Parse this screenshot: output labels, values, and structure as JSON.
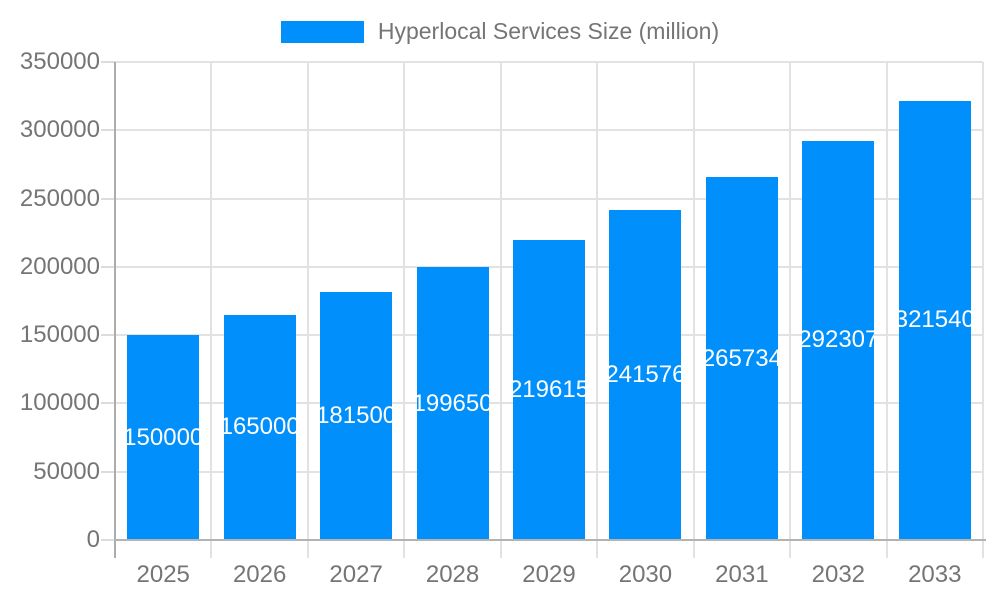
{
  "chart_data": {
    "type": "bar",
    "title": "Hyperlocal Services Size (million)",
    "legend": {
      "label": "Hyperlocal Services Size (million)",
      "position": "top",
      "marker": "rect"
    },
    "categories": [
      "2025",
      "2026",
      "2027",
      "2028",
      "2029",
      "2030",
      "2031",
      "2032",
      "2033"
    ],
    "series": [
      {
        "name": "Hyperlocal Services Size (million)",
        "values": [
          150000,
          165000,
          181500,
          199650,
          219615,
          241576,
          265734,
          292307,
          321540
        ]
      }
    ],
    "data_labels": [
      "150000",
      "165000",
      "181500",
      "199650",
      "219615",
      "241576",
      "265734",
      "292307",
      "321540"
    ],
    "xlabel": "",
    "ylabel": "",
    "ylim": [
      0,
      350000
    ],
    "y_ticks": [
      0,
      50000,
      100000,
      150000,
      200000,
      250000,
      300000,
      350000
    ],
    "y_tick_labels": [
      "0",
      "50000",
      "100000",
      "150000",
      "200000",
      "250000",
      "300000",
      "350000"
    ],
    "grid": "both",
    "colors": {
      "bar": "#008FFB",
      "data_label": "#FFFFFF",
      "axis_text": "#757575",
      "gridline": "#E2E2E2",
      "axis_line": "#B0B0B0",
      "background": "#FFFFFF"
    }
  }
}
